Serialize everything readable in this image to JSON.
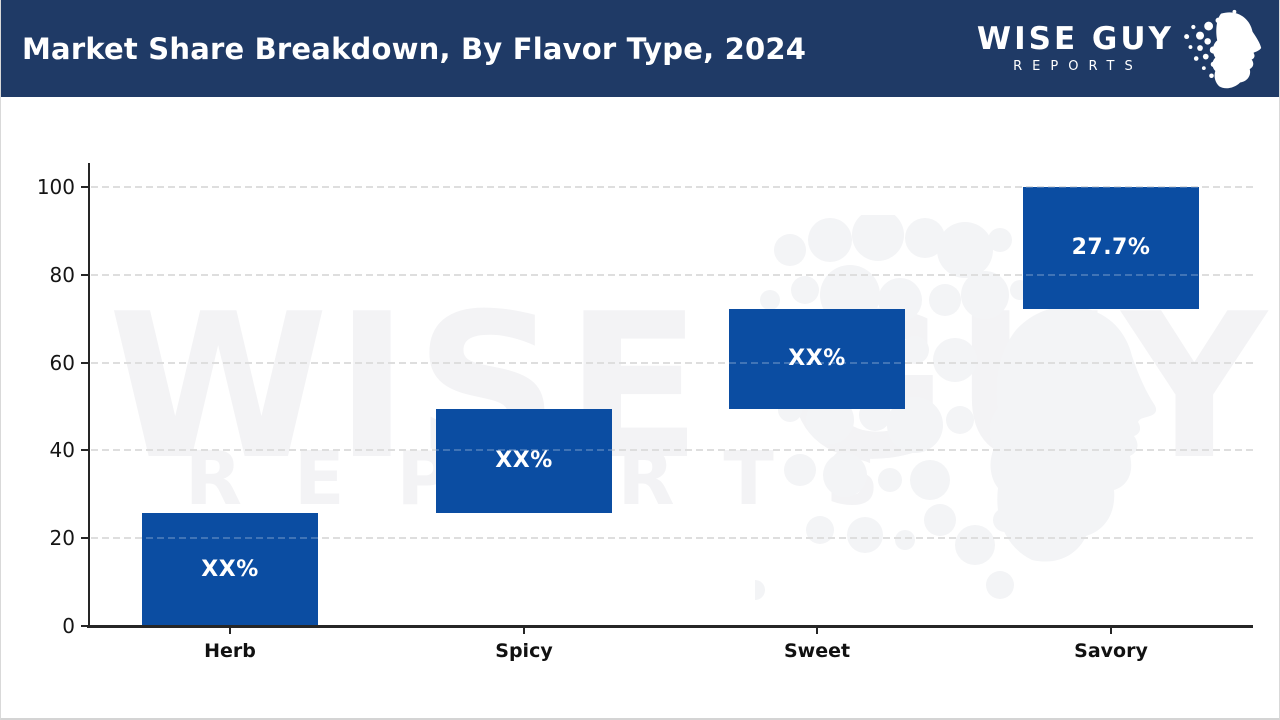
{
  "header": {
    "title": "Market Share Breakdown, By Flavor Type, 2024",
    "logo": {
      "line1": "WISE GUY",
      "line2": "REPORTS"
    }
  },
  "watermark": {
    "line1": "WISE GUY",
    "line2": "REPORTS"
  },
  "colors": {
    "header_bg": "#1f3a66",
    "bar": "#0b4da2",
    "axis": "#262626",
    "gridline": "#d5d5d5",
    "watermark": "#f3f3f5"
  },
  "chart_data": {
    "type": "bar",
    "subtype": "waterfall-stacked-range",
    "title": "Market Share Breakdown, By Flavor Type, 2024",
    "categories": [
      "Herb",
      "Spicy",
      "Sweet",
      "Savory"
    ],
    "segments": [
      {
        "category": "Herb",
        "start": 0,
        "end": 25.8,
        "value": 25.8,
        "label": "XX%"
      },
      {
        "category": "Spicy",
        "start": 25.8,
        "end": 49.5,
        "value": 23.7,
        "label": "XX%"
      },
      {
        "category": "Sweet",
        "start": 49.5,
        "end": 72.3,
        "value": 22.8,
        "label": "XX%"
      },
      {
        "category": "Savory",
        "start": 72.3,
        "end": 100,
        "value": 27.7,
        "label": "27.7%"
      }
    ],
    "yticks": [
      0,
      20,
      40,
      60,
      80,
      100
    ],
    "ylim": [
      0,
      105.5
    ],
    "xlabel": "",
    "ylabel": "",
    "grid": "horizontal-dashed",
    "legend": "none",
    "bar_color": "#0b4da2"
  }
}
